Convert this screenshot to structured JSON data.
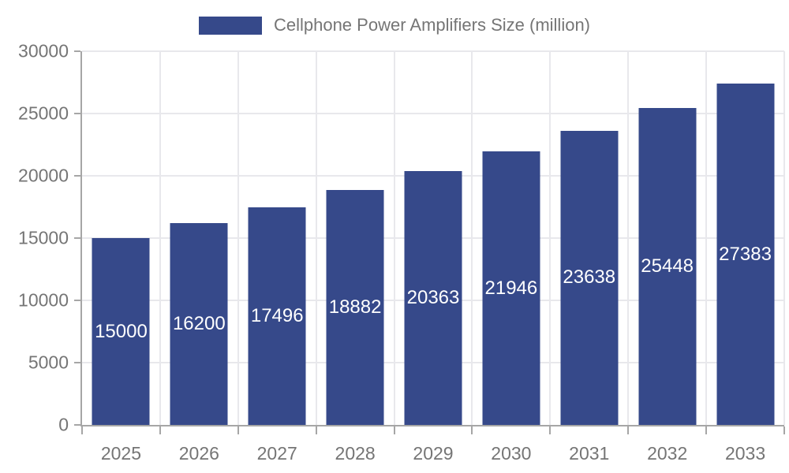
{
  "legend": {
    "label": "Cellphone Power Amplifiers Size (million)"
  },
  "chart_data": {
    "type": "bar",
    "title": "Cellphone Power Amplifiers Size (million)",
    "categories": [
      "2025",
      "2026",
      "2027",
      "2028",
      "2029",
      "2030",
      "2031",
      "2032",
      "2033"
    ],
    "values": [
      15000,
      16200,
      17496,
      18882,
      20363,
      21946,
      23638,
      25448,
      27383
    ],
    "xlabel": "",
    "ylabel": "",
    "ylim": [
      0,
      30000
    ],
    "ytick_step": 5000,
    "ytick_labels": [
      "0",
      "5000",
      "10000",
      "15000",
      "20000",
      "25000",
      "30000"
    ],
    "grid": true,
    "legend_position": "top-center",
    "bar_color": "#36498a",
    "value_label_color": "#ffffff",
    "axis_color": "#a6a6a6",
    "text_color": "#757575",
    "grid_color": "#e8e8ec"
  }
}
